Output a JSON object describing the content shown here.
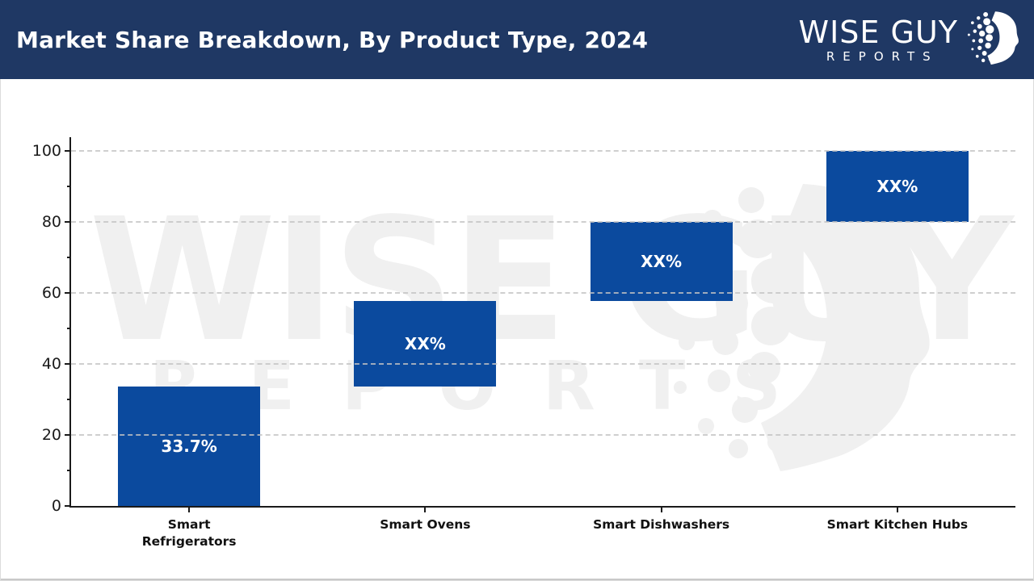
{
  "header": {
    "title": "Market Share Breakdown, By Product Type, 2024",
    "logo": {
      "wordmark": "WISE GUY",
      "subtext": "REPORTS"
    }
  },
  "watermark": {
    "wordmark": "WISE GUY",
    "subtext": "REPORTS"
  },
  "colors": {
    "header_bg": "#1f3864",
    "header_text": "#ffffff",
    "bar": "#0b4a9e",
    "bar_label": "#ffffff",
    "axis": "#1a1a1a",
    "grid": "#c4c4c4",
    "watermark": "#f0f0f0",
    "category_label": "#111111"
  },
  "chart_data": {
    "type": "bar",
    "subtype": "waterfall",
    "title": "Market Share Breakdown, By Product Type, 2024",
    "categories": [
      "Smart Refrigerators",
      "Smart Ovens",
      "Smart Dishwashers",
      "Smart Kitchen Hubs"
    ],
    "category_label_lines": [
      [
        "Smart",
        "Refrigerators"
      ],
      [
        "Smart Ovens"
      ],
      [
        "Smart Dishwashers"
      ],
      [
        "Smart Kitchen Hubs"
      ]
    ],
    "segments": [
      {
        "category": "Smart Refrigerators",
        "start": 0,
        "end": 33.7,
        "value": 33.7,
        "label": "33.7%"
      },
      {
        "category": "Smart Ovens",
        "start": 33.7,
        "end": 57.7,
        "value": 24.0,
        "label": "XX%"
      },
      {
        "category": "Smart Dishwashers",
        "start": 57.7,
        "end": 80.0,
        "value": 22.3,
        "label": "XX%"
      },
      {
        "category": "Smart Kitchen Hubs",
        "start": 80.0,
        "end": 100.0,
        "value": 20.0,
        "label": "XX%"
      }
    ],
    "cumulative": [
      33.7,
      57.7,
      80.0,
      100.0
    ],
    "y_ticks": [
      0,
      20,
      40,
      60,
      80,
      100
    ],
    "y_minor_ticks": [
      10,
      30,
      50,
      70,
      90
    ],
    "ylim": [
      0,
      105
    ],
    "xlabel": "",
    "ylabel": "",
    "grid": "horizontal dashed",
    "legend": "none"
  }
}
